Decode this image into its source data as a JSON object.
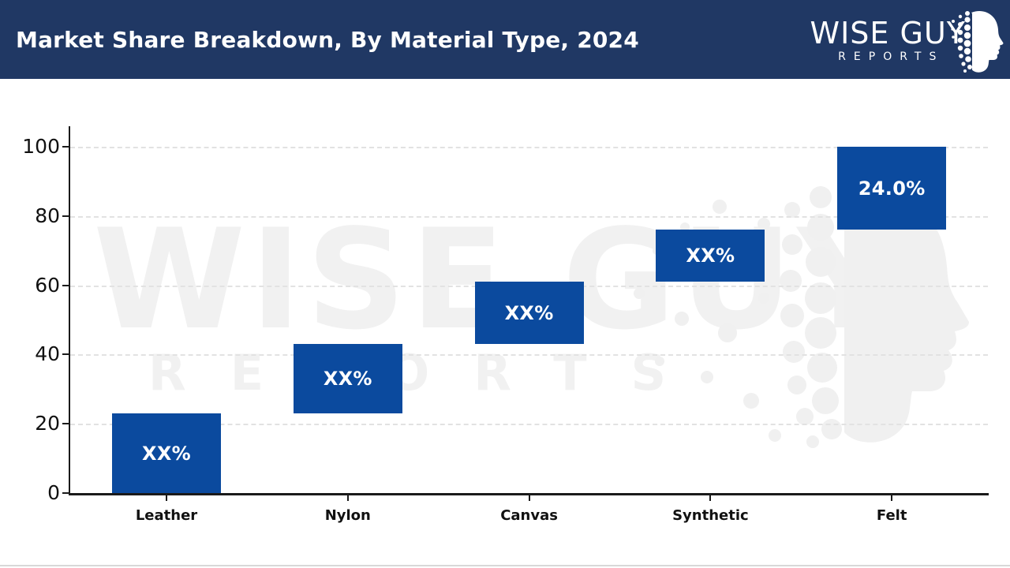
{
  "header": {
    "title": "Market Share Breakdown, By Material Type, 2024",
    "bg_color": "#203864",
    "logo": {
      "line1": "WISE GUY",
      "line2": "REPORTS"
    }
  },
  "watermark": {
    "line1": "WISE GUY",
    "line2": "REPORTS"
  },
  "chart_data": {
    "type": "bar",
    "subtype": "waterfall-floating-bars",
    "title": "Market Share Breakdown, By Material Type, 2024",
    "categories": [
      "Leather",
      "Nylon",
      "Canvas",
      "Synthetic",
      "Felt"
    ],
    "segments": [
      {
        "category": "Leather",
        "start": 0,
        "end": 23,
        "label": "XX%"
      },
      {
        "category": "Nylon",
        "start": 23,
        "end": 43,
        "label": "XX%"
      },
      {
        "category": "Canvas",
        "start": 43,
        "end": 61,
        "label": "XX%"
      },
      {
        "category": "Synthetic",
        "start": 61,
        "end": 76,
        "label": "XX%"
      },
      {
        "category": "Felt",
        "start": 76,
        "end": 100,
        "label": "24.0%"
      }
    ],
    "yticks": [
      0,
      20,
      40,
      60,
      80,
      100
    ],
    "ylim": [
      0,
      100
    ],
    "xlabel": "",
    "ylabel": "",
    "grid": "horizontal-dashed",
    "legend": "none",
    "bar_color": "#0b4a9e",
    "bar_label_color": "#ffffff",
    "axis_color": "#1a1a1a"
  }
}
